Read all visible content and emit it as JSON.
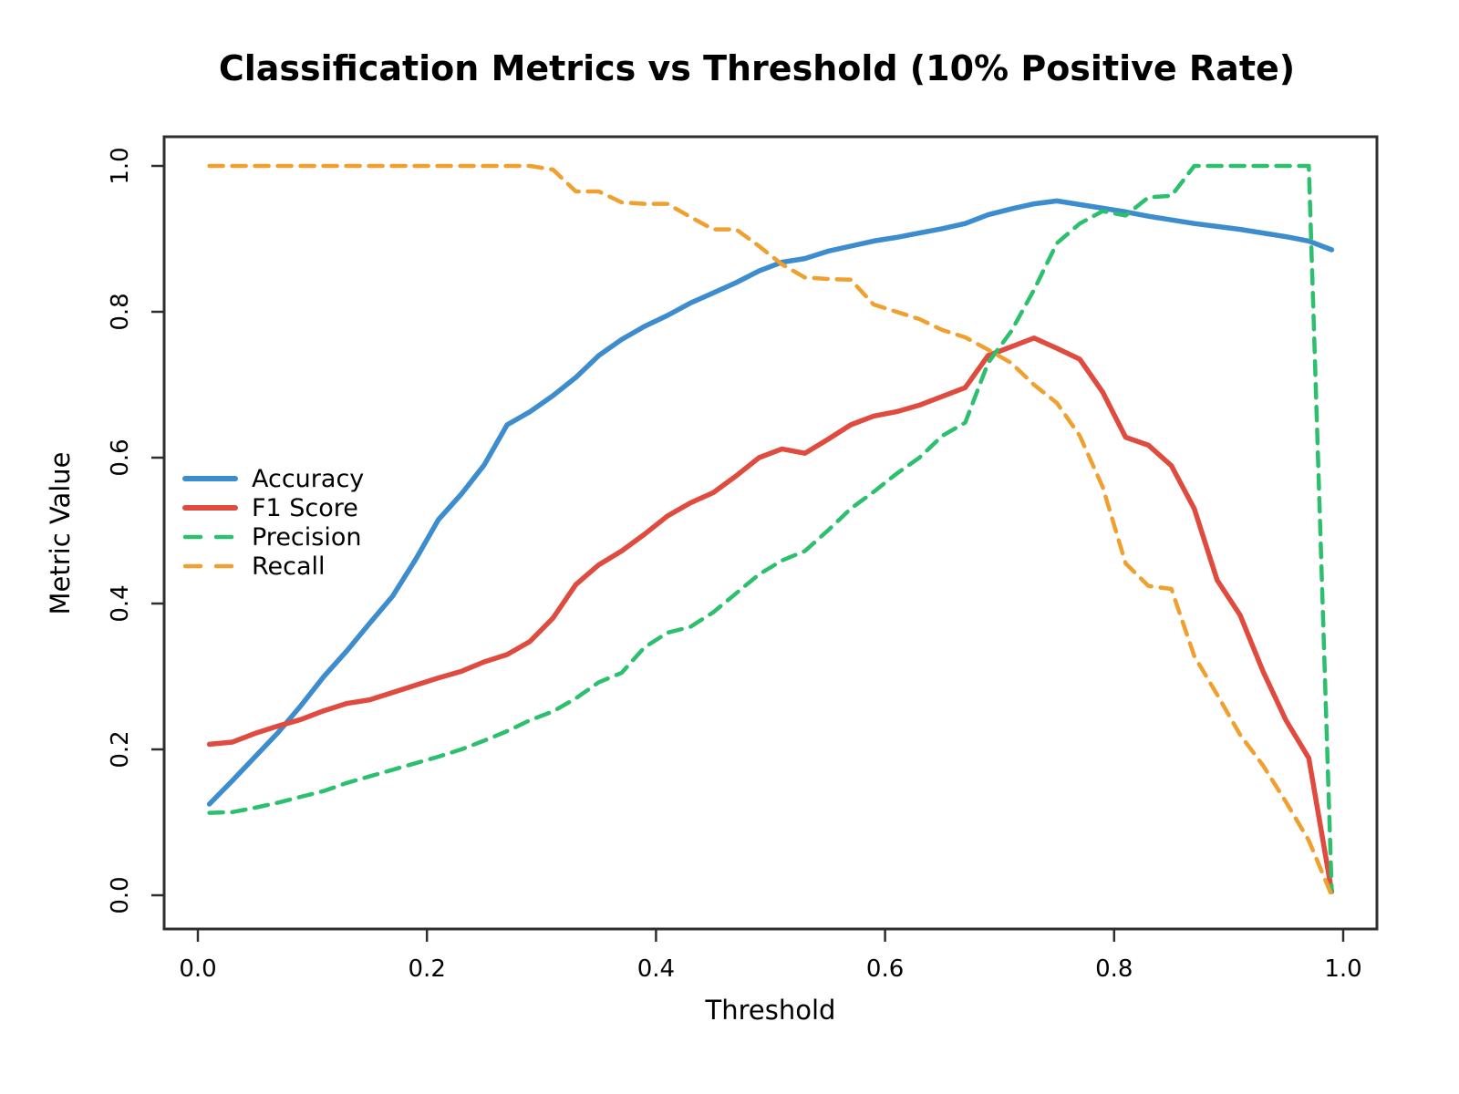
{
  "title": "Classification Metrics vs Threshold (10% Positive Rate)",
  "axes": {
    "xlabel": "Threshold",
    "ylabel": "Metric Value",
    "x_ticks": [
      0.0,
      0.2,
      0.4,
      0.6,
      0.8,
      1.0
    ],
    "y_ticks": [
      0.0,
      0.2,
      0.4,
      0.6,
      0.8,
      1.0
    ],
    "x_tick_labels": [
      "0.0",
      "0.2",
      "0.4",
      "0.6",
      "0.8",
      "1.0"
    ],
    "y_tick_labels": [
      "0.0",
      "0.2",
      "0.4",
      "0.6",
      "0.8",
      "1.0"
    ],
    "xlim": [
      -0.03,
      1.03
    ],
    "ylim": [
      -0.046,
      1.046
    ],
    "box_color": "#2e2e2e"
  },
  "chart_data": {
    "type": "line",
    "title": "Classification Metrics vs Threshold (10% Positive Rate)",
    "xlabel": "Threshold",
    "ylabel": "Metric Value",
    "xlim": [
      0,
      1
    ],
    "ylim": [
      0,
      1
    ],
    "grid": false,
    "legend_position": "center-left",
    "x": [
      0.01,
      0.03,
      0.05,
      0.07,
      0.09,
      0.11,
      0.13,
      0.15,
      0.17,
      0.19,
      0.21,
      0.23,
      0.25,
      0.27,
      0.29,
      0.31,
      0.33,
      0.35,
      0.37,
      0.39,
      0.41,
      0.43,
      0.45,
      0.47,
      0.49,
      0.51,
      0.53,
      0.55,
      0.57,
      0.59,
      0.61,
      0.63,
      0.65,
      0.67,
      0.69,
      0.71,
      0.73,
      0.75,
      0.77,
      0.79,
      0.81,
      0.83,
      0.85,
      0.87,
      0.89,
      0.91,
      0.93,
      0.95,
      0.97,
      0.99
    ],
    "series": [
      {
        "name": "Accuracy",
        "color": "#3d8dce",
        "style": "solid",
        "values": [
          0.125,
          0.157,
          0.19,
          0.223,
          0.26,
          0.3,
          0.335,
          0.373,
          0.41,
          0.46,
          0.515,
          0.55,
          0.59,
          0.645,
          0.663,
          0.685,
          0.71,
          0.74,
          0.762,
          0.78,
          0.795,
          0.812,
          0.826,
          0.84,
          0.856,
          0.868,
          0.873,
          0.883,
          0.89,
          0.897,
          0.902,
          0.908,
          0.914,
          0.921,
          0.933,
          0.941,
          0.948,
          0.952,
          0.947,
          0.942,
          0.937,
          0.931,
          0.926,
          0.921,
          0.917,
          0.913,
          0.908,
          0.903,
          0.897,
          0.885
        ]
      },
      {
        "name": "F1 Score",
        "color": "#df4b3e",
        "style": "solid",
        "values": [
          0.207,
          0.21,
          0.222,
          0.232,
          0.241,
          0.253,
          0.263,
          0.268,
          0.278,
          0.288,
          0.298,
          0.307,
          0.32,
          0.33,
          0.348,
          0.38,
          0.426,
          0.453,
          0.472,
          0.495,
          0.52,
          0.538,
          0.552,
          0.575,
          0.6,
          0.612,
          0.606,
          0.625,
          0.645,
          0.657,
          0.663,
          0.672,
          0.684,
          0.696,
          0.74,
          0.752,
          0.764,
          0.75,
          0.735,
          0.69,
          0.628,
          0.617,
          0.589,
          0.53,
          0.432,
          0.384,
          0.307,
          0.24,
          0.188,
          0.005
        ]
      },
      {
        "name": "Precision",
        "color": "#2cbf6e",
        "style": "dashed",
        "values": [
          0.113,
          0.114,
          0.12,
          0.127,
          0.135,
          0.143,
          0.154,
          0.163,
          0.172,
          0.181,
          0.19,
          0.2,
          0.212,
          0.225,
          0.24,
          0.252,
          0.27,
          0.292,
          0.305,
          0.34,
          0.36,
          0.368,
          0.388,
          0.414,
          0.44,
          0.459,
          0.472,
          0.5,
          0.53,
          0.553,
          0.578,
          0.6,
          0.63,
          0.648,
          0.73,
          0.773,
          0.83,
          0.894,
          0.921,
          0.938,
          0.932,
          0.957,
          0.959,
          1.0,
          1.0,
          1.0,
          1.0,
          1.0,
          1.0,
          0.005
        ]
      },
      {
        "name": "Recall",
        "color": "#efa02e",
        "style": "dashed",
        "values": [
          1.0,
          1.0,
          1.0,
          1.0,
          1.0,
          1.0,
          1.0,
          1.0,
          1.0,
          1.0,
          1.0,
          1.0,
          1.0,
          1.0,
          1.0,
          0.995,
          0.965,
          0.965,
          0.95,
          0.948,
          0.948,
          0.93,
          0.913,
          0.913,
          0.89,
          0.865,
          0.847,
          0.845,
          0.844,
          0.81,
          0.8,
          0.79,
          0.775,
          0.765,
          0.748,
          0.73,
          0.7,
          0.675,
          0.63,
          0.56,
          0.455,
          0.424,
          0.42,
          0.328,
          0.275,
          0.22,
          0.178,
          0.128,
          0.075,
          0.0
        ]
      }
    ]
  }
}
